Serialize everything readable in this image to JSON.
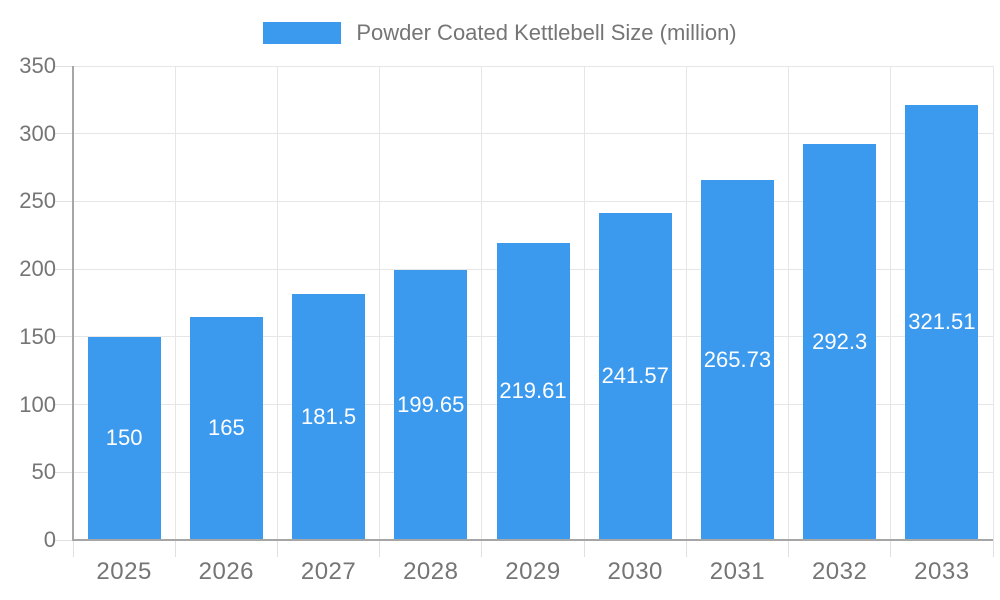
{
  "legend": {
    "label": "Powder Coated Kettlebell Size (million)",
    "position": "top-center"
  },
  "chart_data": {
    "type": "bar",
    "title": "Powder Coated Kettlebell Size (million)",
    "categories": [
      "2025",
      "2026",
      "2027",
      "2028",
      "2029",
      "2030",
      "2031",
      "2032",
      "2033"
    ],
    "series": [
      {
        "name": "Powder Coated Kettlebell Size (million)",
        "values": [
          150,
          165,
          181.5,
          199.65,
          219.61,
          241.57,
          265.73,
          292.3,
          321.51
        ],
        "value_labels": [
          "150",
          "165",
          "181.5",
          "199.65",
          "219.61",
          "241.57",
          "265.73",
          "292.3",
          "321.51"
        ],
        "color": "#3B99EE"
      }
    ],
    "xlabel": "",
    "ylabel": "",
    "ylim": [
      0,
      350
    ],
    "yticks": [
      0,
      50,
      100,
      150,
      200,
      250,
      300,
      350
    ],
    "grid": true,
    "value_labels_inside_bars": true,
    "value_label_color": "#ffffff",
    "legend_position": "top-center",
    "colors": {
      "bar": "#3B99EE",
      "grid": "#e6e6e6",
      "tick": "#e0e0e0",
      "axis": "#a6a6a6",
      "axis_text": "#757575",
      "background": "#ffffff"
    }
  }
}
